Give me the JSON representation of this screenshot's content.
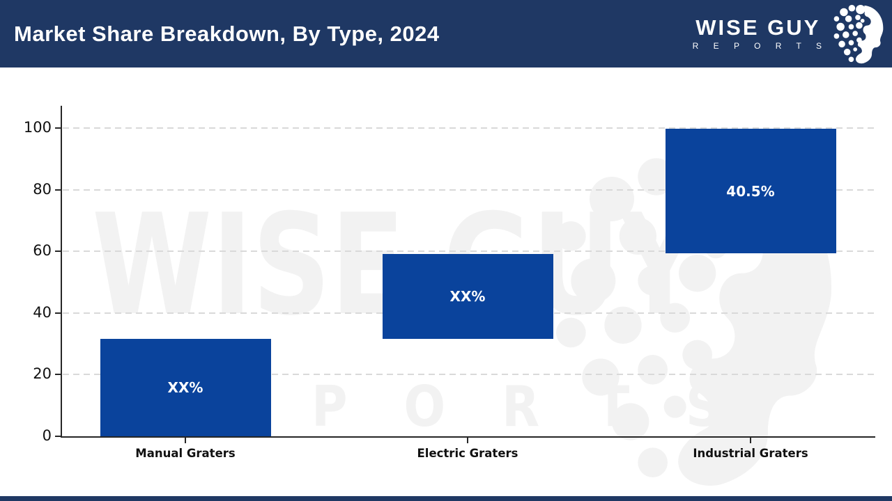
{
  "header": {
    "title": "Market Share Breakdown, By Type, 2024",
    "logo": {
      "line1": "WISE GUY",
      "line2": "R E P O R T S"
    }
  },
  "watermark": {
    "line1": "WISE GUY",
    "line2": "R E P O R T S"
  },
  "chart_data": {
    "type": "bar",
    "subtype": "floating-stacked-range-bars",
    "title": "Market Share Breakdown, By Type, 2024",
    "categories": [
      "Manual Graters",
      "Electric Graters",
      "Industrial Graters"
    ],
    "series": [
      {
        "name": "Manual Graters",
        "start": 0,
        "end": 31.6,
        "label": "XX%"
      },
      {
        "name": "Electric Graters",
        "start": 31.6,
        "end": 59.2,
        "label": "XX%"
      },
      {
        "name": "Industrial Graters",
        "start": 59.3,
        "end": 99.8,
        "label": "40.5%"
      }
    ],
    "xlabel": "",
    "ylabel": "",
    "ylim": [
      0,
      105.5
    ],
    "yticks": [
      0,
      20,
      40,
      60,
      80,
      100
    ],
    "grid": "horizontal-dashed",
    "legend": "none",
    "bar_color": "#0A439C",
    "bar_label_color": "#ffffff",
    "grid_color": "#D9D9D9",
    "axis_color": "#262626",
    "header_bg": "#1F3864",
    "footer_bg": "#1F3864",
    "watermark_color": "#F2F2F2"
  }
}
